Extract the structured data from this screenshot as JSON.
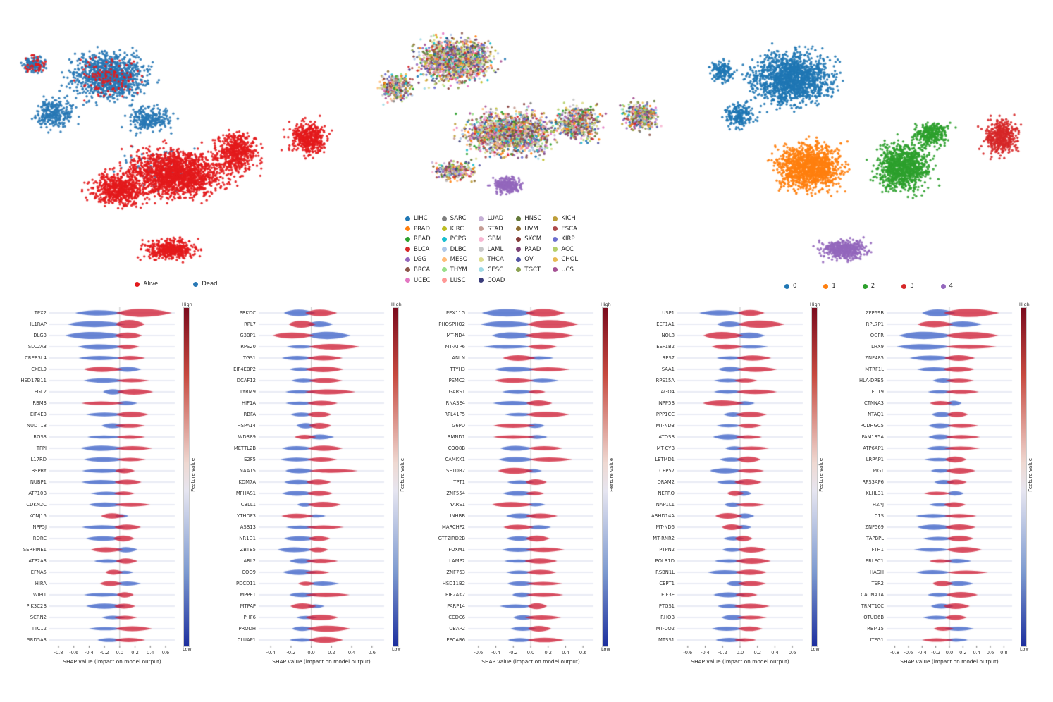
{
  "figure": {
    "description": "Multi-panel figure: three UMAP embeddings (survival status, cancer type, clusters) and five SHAP summary plots"
  },
  "chart_data": [
    {
      "id": "umap_survival",
      "type": "scatter",
      "axes": "hidden",
      "seed": 42,
      "legend": [
        {
          "label": "Alive",
          "color": "#e3191c"
        },
        {
          "label": "Dead",
          "color": "#2878b5"
        }
      ],
      "clusters": [
        {
          "series": "Dead",
          "color": "#2878b5",
          "cx": 0.3,
          "cy": 0.24,
          "rx": 0.17,
          "ry": 0.14,
          "n": 1100
        },
        {
          "series": "Dead",
          "color": "#2878b5",
          "cx": 0.14,
          "cy": 0.38,
          "rx": 0.09,
          "ry": 0.09,
          "n": 280
        },
        {
          "series": "Dead",
          "color": "#2878b5",
          "cx": 0.08,
          "cy": 0.2,
          "rx": 0.05,
          "ry": 0.05,
          "n": 120
        },
        {
          "series": "Dead",
          "color": "#2878b5",
          "cx": 0.42,
          "cy": 0.4,
          "rx": 0.1,
          "ry": 0.08,
          "n": 260
        },
        {
          "series": "Dead",
          "color": "#2878b5",
          "cx": 0.45,
          "cy": 0.58,
          "rx": 0.22,
          "ry": 0.13,
          "n": 90
        },
        {
          "series": "Alive",
          "color": "#e3191c",
          "cx": 0.5,
          "cy": 0.6,
          "rx": 0.22,
          "ry": 0.14,
          "n": 1700
        },
        {
          "series": "Alive",
          "color": "#e3191c",
          "cx": 0.33,
          "cy": 0.66,
          "rx": 0.13,
          "ry": 0.1,
          "n": 600
        },
        {
          "series": "Alive",
          "color": "#e3191c",
          "cx": 0.68,
          "cy": 0.52,
          "rx": 0.1,
          "ry": 0.12,
          "n": 500
        },
        {
          "series": "Alive",
          "color": "#e3191c",
          "cx": 0.48,
          "cy": 0.88,
          "rx": 0.12,
          "ry": 0.06,
          "n": 450
        },
        {
          "series": "Alive",
          "color": "#e3191c",
          "cx": 0.89,
          "cy": 0.47,
          "rx": 0.085,
          "ry": 0.1,
          "n": 420
        },
        {
          "series": "Alive",
          "color": "#e3191c",
          "cx": 0.3,
          "cy": 0.25,
          "rx": 0.16,
          "ry": 0.13,
          "n": 110
        },
        {
          "series": "Alive",
          "color": "#e3191c",
          "cx": 0.08,
          "cy": 0.2,
          "rx": 0.05,
          "ry": 0.05,
          "n": 40
        }
      ]
    },
    {
      "id": "umap_cancer_type",
      "type": "scatter",
      "axes": "hidden",
      "seed": 7,
      "types": [
        {
          "label": "LIHC",
          "color": "#1f77b4"
        },
        {
          "label": "PRAD",
          "color": "#ff7f0e"
        },
        {
          "label": "READ",
          "color": "#2ca02c"
        },
        {
          "label": "BLCA",
          "color": "#d62728"
        },
        {
          "label": "LGG",
          "color": "#9467bd"
        },
        {
          "label": "BRCA",
          "color": "#8c564b"
        },
        {
          "label": "UCEC",
          "color": "#e377c2"
        },
        {
          "label": "SARC",
          "color": "#7f7f7f"
        },
        {
          "label": "KIRC",
          "color": "#bcbd22"
        },
        {
          "label": "PCPG",
          "color": "#17becf"
        },
        {
          "label": "DLBC",
          "color": "#aec7e8"
        },
        {
          "label": "MESO",
          "color": "#ffbb78"
        },
        {
          "label": "THYM",
          "color": "#98df8a"
        },
        {
          "label": "LUSC",
          "color": "#ff9896"
        },
        {
          "label": "LUAD",
          "color": "#c5b0d5"
        },
        {
          "label": "STAD",
          "color": "#c49c94"
        },
        {
          "label": "GBM",
          "color": "#f7b6d2"
        },
        {
          "label": "LAML",
          "color": "#c7c7c7"
        },
        {
          "label": "THCA",
          "color": "#dbdb8d"
        },
        {
          "label": "CESC",
          "color": "#9edae5"
        },
        {
          "label": "COAD",
          "color": "#393b79"
        },
        {
          "label": "HNSC",
          "color": "#637939"
        },
        {
          "label": "UVM",
          "color": "#8c6d31"
        },
        {
          "label": "SKCM",
          "color": "#843c39"
        },
        {
          "label": "PAAD",
          "color": "#7b4173"
        },
        {
          "label": "OV",
          "color": "#5254a3"
        },
        {
          "label": "TGCT",
          "color": "#8ca252"
        },
        {
          "label": "KICH",
          "color": "#bd9e39"
        },
        {
          "label": "ESCA",
          "color": "#ad494a"
        },
        {
          "label": "KIRP",
          "color": "#6b6ecf"
        },
        {
          "label": "ACC",
          "color": "#b5cf6b"
        },
        {
          "label": "CHOL",
          "color": "#e7ba52"
        },
        {
          "label": "UCS",
          "color": "#a55194"
        }
      ],
      "legend_layout": [
        7,
        7,
        7,
        6,
        6
      ],
      "clusters": [
        {
          "color": "multi",
          "cx": 0.3,
          "cy": 0.25,
          "rx": 0.18,
          "ry": 0.17,
          "n": 1300
        },
        {
          "color": "multi",
          "cx": 0.12,
          "cy": 0.38,
          "rx": 0.08,
          "ry": 0.1,
          "n": 300
        },
        {
          "color": "multi",
          "cx": 0.47,
          "cy": 0.6,
          "rx": 0.22,
          "ry": 0.16,
          "n": 1500
        },
        {
          "color": "multi",
          "cx": 0.68,
          "cy": 0.55,
          "rx": 0.1,
          "ry": 0.13,
          "n": 500
        },
        {
          "color": "multi",
          "cx": 0.87,
          "cy": 0.52,
          "rx": 0.08,
          "ry": 0.11,
          "n": 380
        },
        {
          "color": "#9467bd",
          "cx": 0.46,
          "cy": 0.85,
          "rx": 0.07,
          "ry": 0.06,
          "n": 250
        },
        {
          "color": "multi",
          "cx": 0.3,
          "cy": 0.78,
          "rx": 0.1,
          "ry": 0.07,
          "n": 250
        }
      ]
    },
    {
      "id": "umap_clusters",
      "type": "scatter",
      "axes": "hidden",
      "seed": 99,
      "legend": [
        {
          "label": "0",
          "color": "#1f77b4"
        },
        {
          "label": "1",
          "color": "#ff7f0e"
        },
        {
          "label": "2",
          "color": "#2ca02c"
        },
        {
          "label": "3",
          "color": "#d62728"
        },
        {
          "label": "4",
          "color": "#9467bd"
        }
      ],
      "clusters": [
        {
          "series": "0",
          "color": "#1f77b4",
          "cx": 0.28,
          "cy": 0.25,
          "rx": 0.18,
          "ry": 0.15,
          "n": 1500
        },
        {
          "series": "0",
          "color": "#1f77b4",
          "cx": 0.08,
          "cy": 0.22,
          "rx": 0.05,
          "ry": 0.06,
          "n": 150
        },
        {
          "series": "0",
          "color": "#1f77b4",
          "cx": 0.13,
          "cy": 0.38,
          "rx": 0.07,
          "ry": 0.07,
          "n": 200
        },
        {
          "series": "1",
          "color": "#ff7f0e",
          "cx": 0.33,
          "cy": 0.57,
          "rx": 0.15,
          "ry": 0.13,
          "n": 1300
        },
        {
          "series": "2",
          "color": "#2ca02c",
          "cx": 0.6,
          "cy": 0.57,
          "rx": 0.12,
          "ry": 0.14,
          "n": 1000
        },
        {
          "series": "2",
          "color": "#2ca02c",
          "cx": 0.68,
          "cy": 0.45,
          "rx": 0.08,
          "ry": 0.07,
          "n": 300
        },
        {
          "series": "4",
          "color": "#9467bd",
          "cx": 0.43,
          "cy": 0.87,
          "rx": 0.1,
          "ry": 0.055,
          "n": 450
        },
        {
          "series": "3",
          "color": "#d62728",
          "cx": 0.88,
          "cy": 0.46,
          "rx": 0.08,
          "ry": 0.1,
          "n": 420
        }
      ]
    },
    {
      "id": "shap_summary_1",
      "type": "shap_summary",
      "seed": 11,
      "features": [
        "TPX2",
        "IL1RAP",
        "DLG3",
        "SLC2A3",
        "CREB3L4",
        "CXCL9",
        "HSD17B11",
        "FGL2",
        "RBM3",
        "EIF4E3",
        "NUDT18",
        "RGS3",
        "TFPI",
        "IL17RD",
        "BSPRY",
        "NUBP1",
        "ATP10B",
        "CDKN2C",
        "KCNJ15",
        "INPP5J",
        "RORC",
        "SERPINE1",
        "ATP2A3",
        "EFNA5",
        "HIRA",
        "WIPI1",
        "PIK3C2B",
        "SCRN2",
        "TTC12",
        "SRD5A3"
      ],
      "xticks": [
        -0.8,
        -0.6,
        -0.4,
        -0.2,
        0.0,
        0.2,
        0.4,
        0.6
      ],
      "xlim": [
        -0.92,
        0.72
      ],
      "xlabel": "SHAP value (impact on model output)",
      "colorbar": {
        "label": "Feature value",
        "high": "High",
        "low": "Low",
        "top_color": "#7b0c1e",
        "bottom_color": "#1d2f9e"
      }
    },
    {
      "id": "shap_summary_2",
      "type": "shap_summary",
      "seed": 22,
      "features": [
        "PRKDC",
        "RPL7",
        "G3BP1",
        "RPS20",
        "TGS1",
        "EIF4EBP2",
        "DCAF12",
        "LYRM9",
        "HIF1A",
        "RBFA",
        "HSPA14",
        "WDR89",
        "METTL2B",
        "E2F5",
        "NAA15",
        "KDM7A",
        "MFHAS1",
        "CBLL1",
        "YTHDF3",
        "ASB13",
        "NR1D1",
        "ZBTB5",
        "ARL2",
        "COQ9",
        "PDCD11",
        "MPPE1",
        "MTPAP",
        "PHF6",
        "PRODH",
        "CLUAP1"
      ],
      "xticks": [
        -0.4,
        -0.2,
        0.0,
        0.2,
        0.4,
        0.6
      ],
      "xlim": [
        -0.52,
        0.72
      ],
      "xlabel": "SHAP value (impact on model output)",
      "colorbar": {
        "label": "Feature value",
        "high": "High",
        "low": "Low",
        "top_color": "#7b0c1e",
        "bottom_color": "#1d2f9e"
      }
    },
    {
      "id": "shap_summary_3",
      "type": "shap_summary",
      "seed": 33,
      "features": [
        "PEX11G",
        "PHOSPHO2",
        "MT-ND4",
        "MT-ATP6",
        "ANLN",
        "TTYH3",
        "PSMC2",
        "GARS1",
        "RNASE4",
        "RPL41P5",
        "G6PD",
        "RMND1",
        "COQ8B",
        "CAMKK1",
        "SETDB2",
        "TPT1",
        "ZNF554",
        "YARS1",
        "INHBB",
        "MARCHF2",
        "GTF2IRD2B",
        "FOXM1",
        "LAMP2",
        "ZNF763",
        "HSD11B2",
        "EIF2AK2",
        "PARP14",
        "CCDC6",
        "UBAP2",
        "EFCAB6"
      ],
      "xticks": [
        -0.6,
        -0.4,
        -0.2,
        0.0,
        0.2,
        0.4,
        0.6
      ],
      "xlim": [
        -0.72,
        0.72
      ],
      "xlabel": "SHAP value (impact on model output)",
      "colorbar": {
        "label": "Feature value",
        "high": "High",
        "low": "Low",
        "top_color": "#7b0c1e",
        "bottom_color": "#1d2f9e"
      }
    },
    {
      "id": "shap_summary_4",
      "type": "shap_summary",
      "seed": 44,
      "features": [
        "USP1",
        "EEF1A1",
        "NOL8",
        "EEF1B2",
        "RPS7",
        "SAA1",
        "RPS15A",
        "AGO4",
        "INPP5B",
        "PPP1CC",
        "MT-ND3",
        "ATOSB",
        "MT-CYB",
        "LETMD1",
        "CEP57",
        "DRAM2",
        "NEPRO",
        "NAP1L1",
        "ABHD14A",
        "MT-ND6",
        "MT-RNR2",
        "PTPN2",
        "POLR1D",
        "RSBN1L",
        "CEPT1",
        "EIF3E",
        "PTGS1",
        "RHOB",
        "MT-CO2",
        "MTSS1"
      ],
      "xticks": [
        -0.6,
        -0.4,
        -0.2,
        0.0,
        0.2,
        0.4,
        0.6
      ],
      "xlim": [
        -0.72,
        0.72
      ],
      "xlabel": "SHAP value (impact on model output)",
      "colorbar": {
        "label": "Feature value",
        "high": "High",
        "low": "Low",
        "top_color": "#7b0c1e",
        "bottom_color": "#1d2f9e"
      }
    },
    {
      "id": "shap_summary_5",
      "type": "shap_summary",
      "seed": 55,
      "features": [
        "ZFP69B",
        "RPL7P1",
        "OGFR",
        "LHX9",
        "ZNF485",
        "MTRF1L",
        "HLA-DRB5",
        "FUT9",
        "CTNNA3",
        "NTAQ1",
        "PCDHGC5",
        "FAM185A",
        "ATP6AP1",
        "LRPAP1",
        "PIGT",
        "RPS3AP6",
        "KLHL31",
        "H2AJ",
        "C1S",
        "ZNF569",
        "TAPBPL",
        "FTH1",
        "ERLEC1",
        "HAGH",
        "TSR2",
        "CACNA1A",
        "TRMT10C",
        "OTUD6B",
        "RBM15",
        "ITFG1"
      ],
      "xticks": [
        -0.8,
        -0.6,
        -0.4,
        -0.2,
        0.0,
        0.2,
        0.4,
        0.6,
        0.8
      ],
      "xlim": [
        -0.92,
        0.92
      ],
      "xlabel": "SHAP value (impact on model output)",
      "colorbar": {
        "label": "Feature value",
        "high": "High",
        "low": "Low",
        "top_color": "#7b0c1e",
        "bottom_color": "#1d2f9e"
      }
    }
  ]
}
